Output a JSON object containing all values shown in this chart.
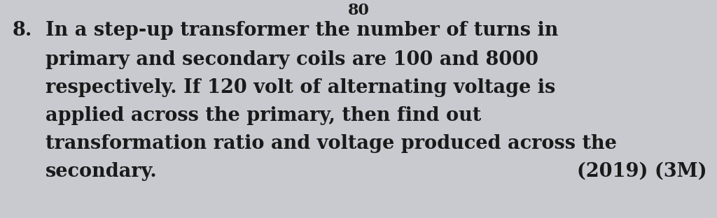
{
  "background_color": "#c8cad0",
  "page_number": "80",
  "question_number": "8.",
  "line1": "In a step-up transformer the number of turns in",
  "line2": "primary and secondary coils are 100 and 8000",
  "line3": "respectively. If 120 volt of alternating voltage is",
  "line4": "applied across the primary, then find out",
  "line5": "transformation ratio and voltage produced across the",
  "line6": "secondary.",
  "mark_label": "(2019) (3M)",
  "text_color": "#1a1a1a",
  "font_size": 19.5,
  "page_num_size": 16
}
